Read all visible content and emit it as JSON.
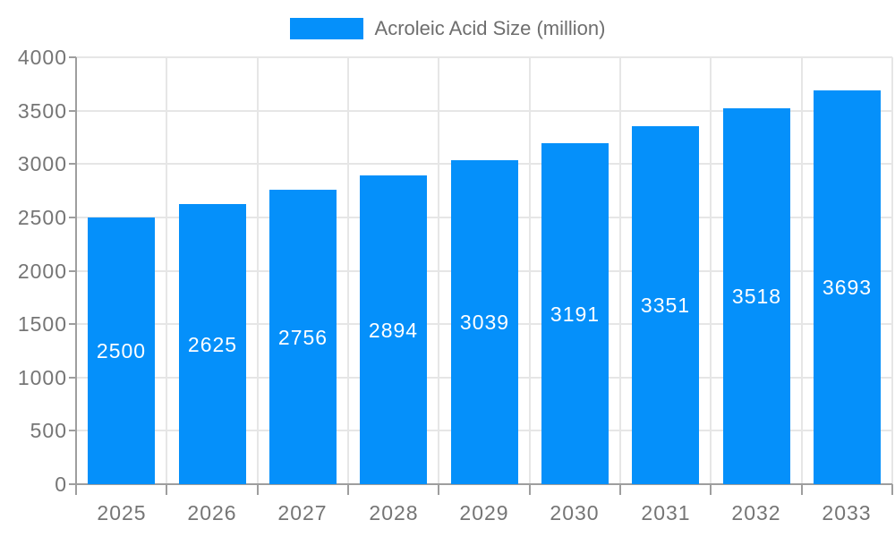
{
  "chart_data": {
    "type": "bar",
    "title": "",
    "legend": "Acroleic Acid Size (million)",
    "legend_position": "top-center",
    "categories": [
      "2025",
      "2026",
      "2027",
      "2028",
      "2029",
      "2030",
      "2031",
      "2032",
      "2033"
    ],
    "values": [
      2500,
      2625,
      2756,
      2894,
      3039,
      3191,
      3351,
      3518,
      3693
    ],
    "xlabel": "",
    "ylabel": "",
    "ylim": [
      0,
      4000
    ],
    "yticks": [
      0,
      500,
      1000,
      1500,
      2000,
      2500,
      3000,
      3500,
      4000
    ],
    "grid": true,
    "value_labels": "inside-center",
    "colors": {
      "bar": "#0590fa",
      "bar_value_text": "#ffffff",
      "axis_text": "#757575",
      "legend_text": "#6e6e6e",
      "grid_line": "#e6e6e6",
      "axis_line": "#9e9e9e"
    }
  }
}
